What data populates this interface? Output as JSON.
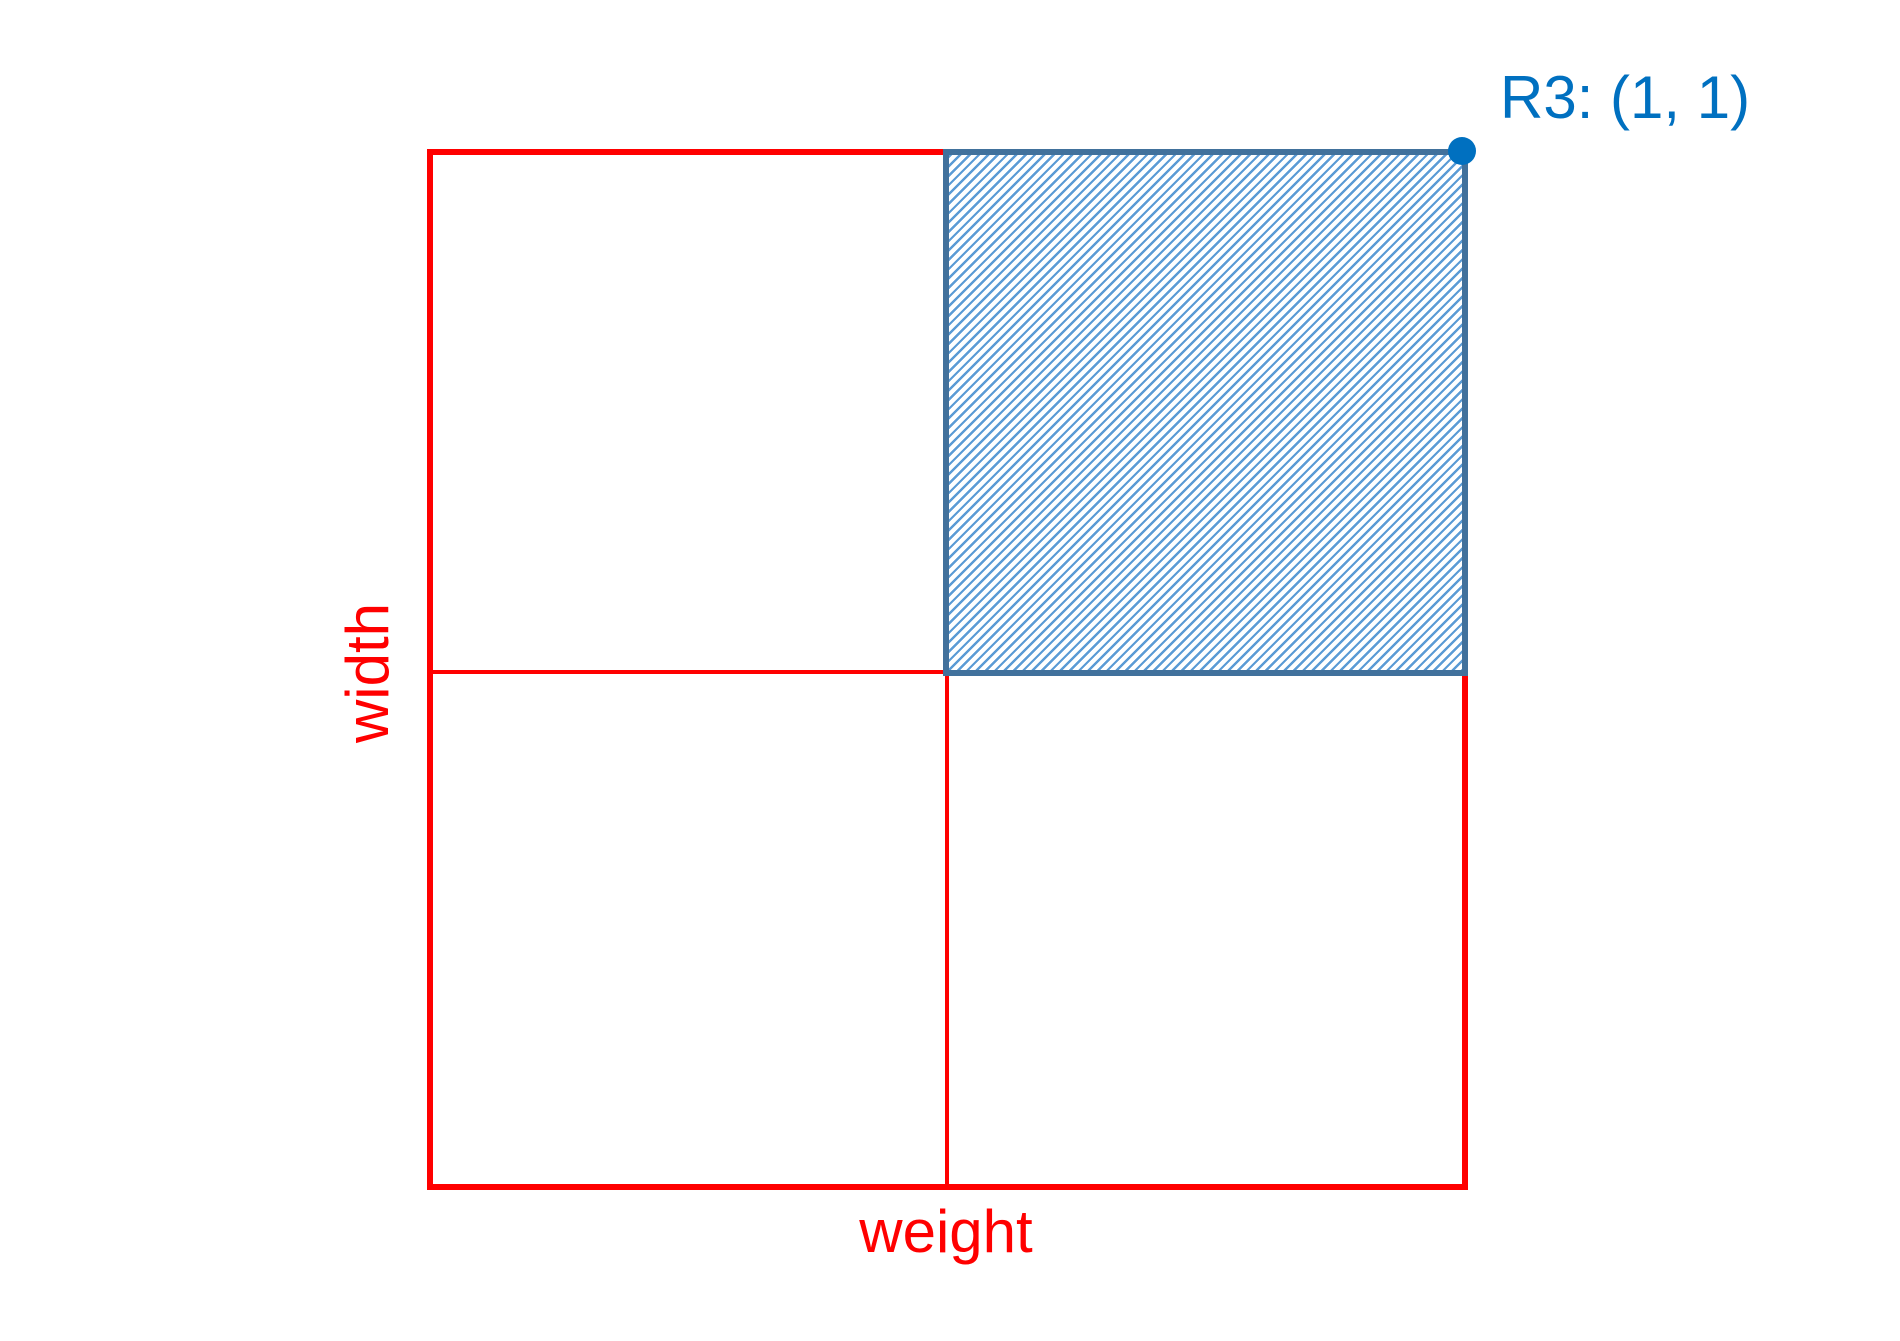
{
  "figure": {
    "type": "feature-space-diagram",
    "background_color": "#ffffff",
    "axes": {
      "x_label": "weight",
      "y_label": "width",
      "axis_color": "#ff0000"
    },
    "outer_square": {
      "border_color": "#ff0000",
      "divided_into": "4 quadrants",
      "midline_color": "#ff0000"
    },
    "region": {
      "name": "R3",
      "label": "R3: (1, 1)",
      "position": "top-right-quadrant",
      "fill_pattern": "upward-diagonal-hatch",
      "hatch_color": "#5b9bd5",
      "border_color": "#41719c"
    },
    "corner_point": {
      "coords": "(1, 1)",
      "color": "#0070c0",
      "position": "top-right-corner"
    },
    "label_color": "#0070c0"
  }
}
